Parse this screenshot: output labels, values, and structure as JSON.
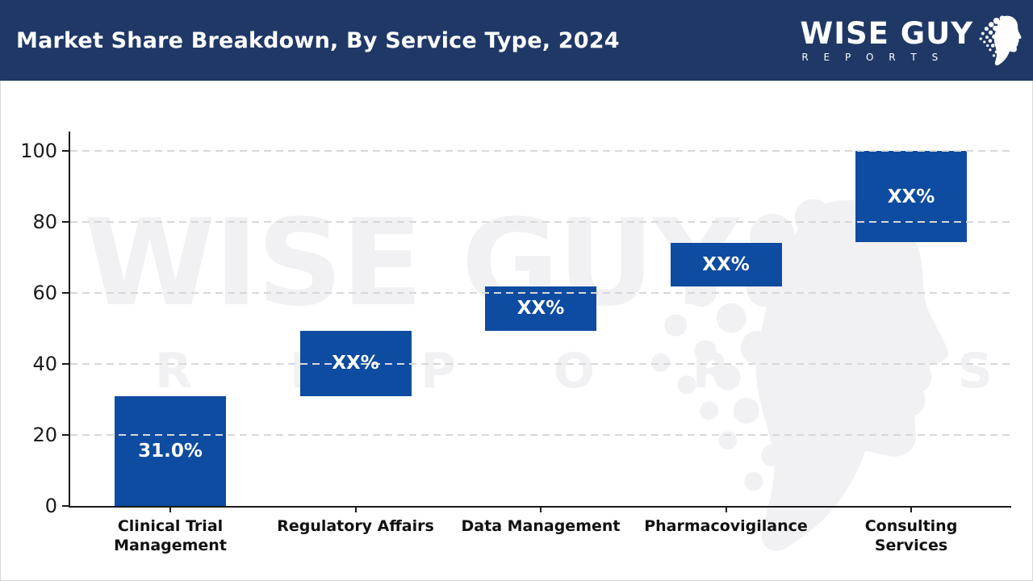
{
  "header": {
    "title": "Market Share Breakdown, By Service Type, 2024",
    "logo": {
      "line1": "WISE GUY",
      "line2": "R E P O R T S"
    }
  },
  "watermark": {
    "line1": "WISE GUY",
    "line2": "R E P O R T S"
  },
  "colors": {
    "header_bg": "#1f3866",
    "bar": "#0d4ca0",
    "bar_label": "#ffffff",
    "grid": "#d8d8d8",
    "axis": "#1a1a1a",
    "watermark": "#f1f1f4"
  },
  "chart_data": {
    "type": "bar",
    "subtype": "waterfall",
    "title": "Market Share Breakdown, By Service Type, 2024",
    "xlabel": "",
    "ylabel": "",
    "categories": [
      "Clinical Trial Management",
      "Regulatory Affairs",
      "Data Management",
      "Pharmacovigilance",
      "Consulting Services"
    ],
    "category_lines": [
      [
        "Clinical Trial",
        "Management"
      ],
      [
        "Regulatory Affairs"
      ],
      [
        "Data Management"
      ],
      [
        "Pharmacovigilance"
      ],
      [
        "Consulting",
        "Services"
      ]
    ],
    "segments": [
      {
        "category": "Clinical Trial Management",
        "start": 0,
        "end": 31,
        "value_label": "31.0%"
      },
      {
        "category": "Regulatory Affairs",
        "start": 31,
        "end": 49.4,
        "value_label": "XX%"
      },
      {
        "category": "Data Management",
        "start": 49.4,
        "end": 61.9,
        "value_label": "XX%"
      },
      {
        "category": "Pharmacovigilance",
        "start": 61.9,
        "end": 74.2,
        "value_label": "XX%"
      },
      {
        "category": "Consulting Services",
        "start": 74.3,
        "end": 100,
        "value_label": "XX%"
      }
    ],
    "yticks": [
      0,
      20,
      40,
      60,
      80,
      100
    ],
    "ylim": [
      0,
      105
    ],
    "grid": "horizontal dashed",
    "legend": "none"
  }
}
